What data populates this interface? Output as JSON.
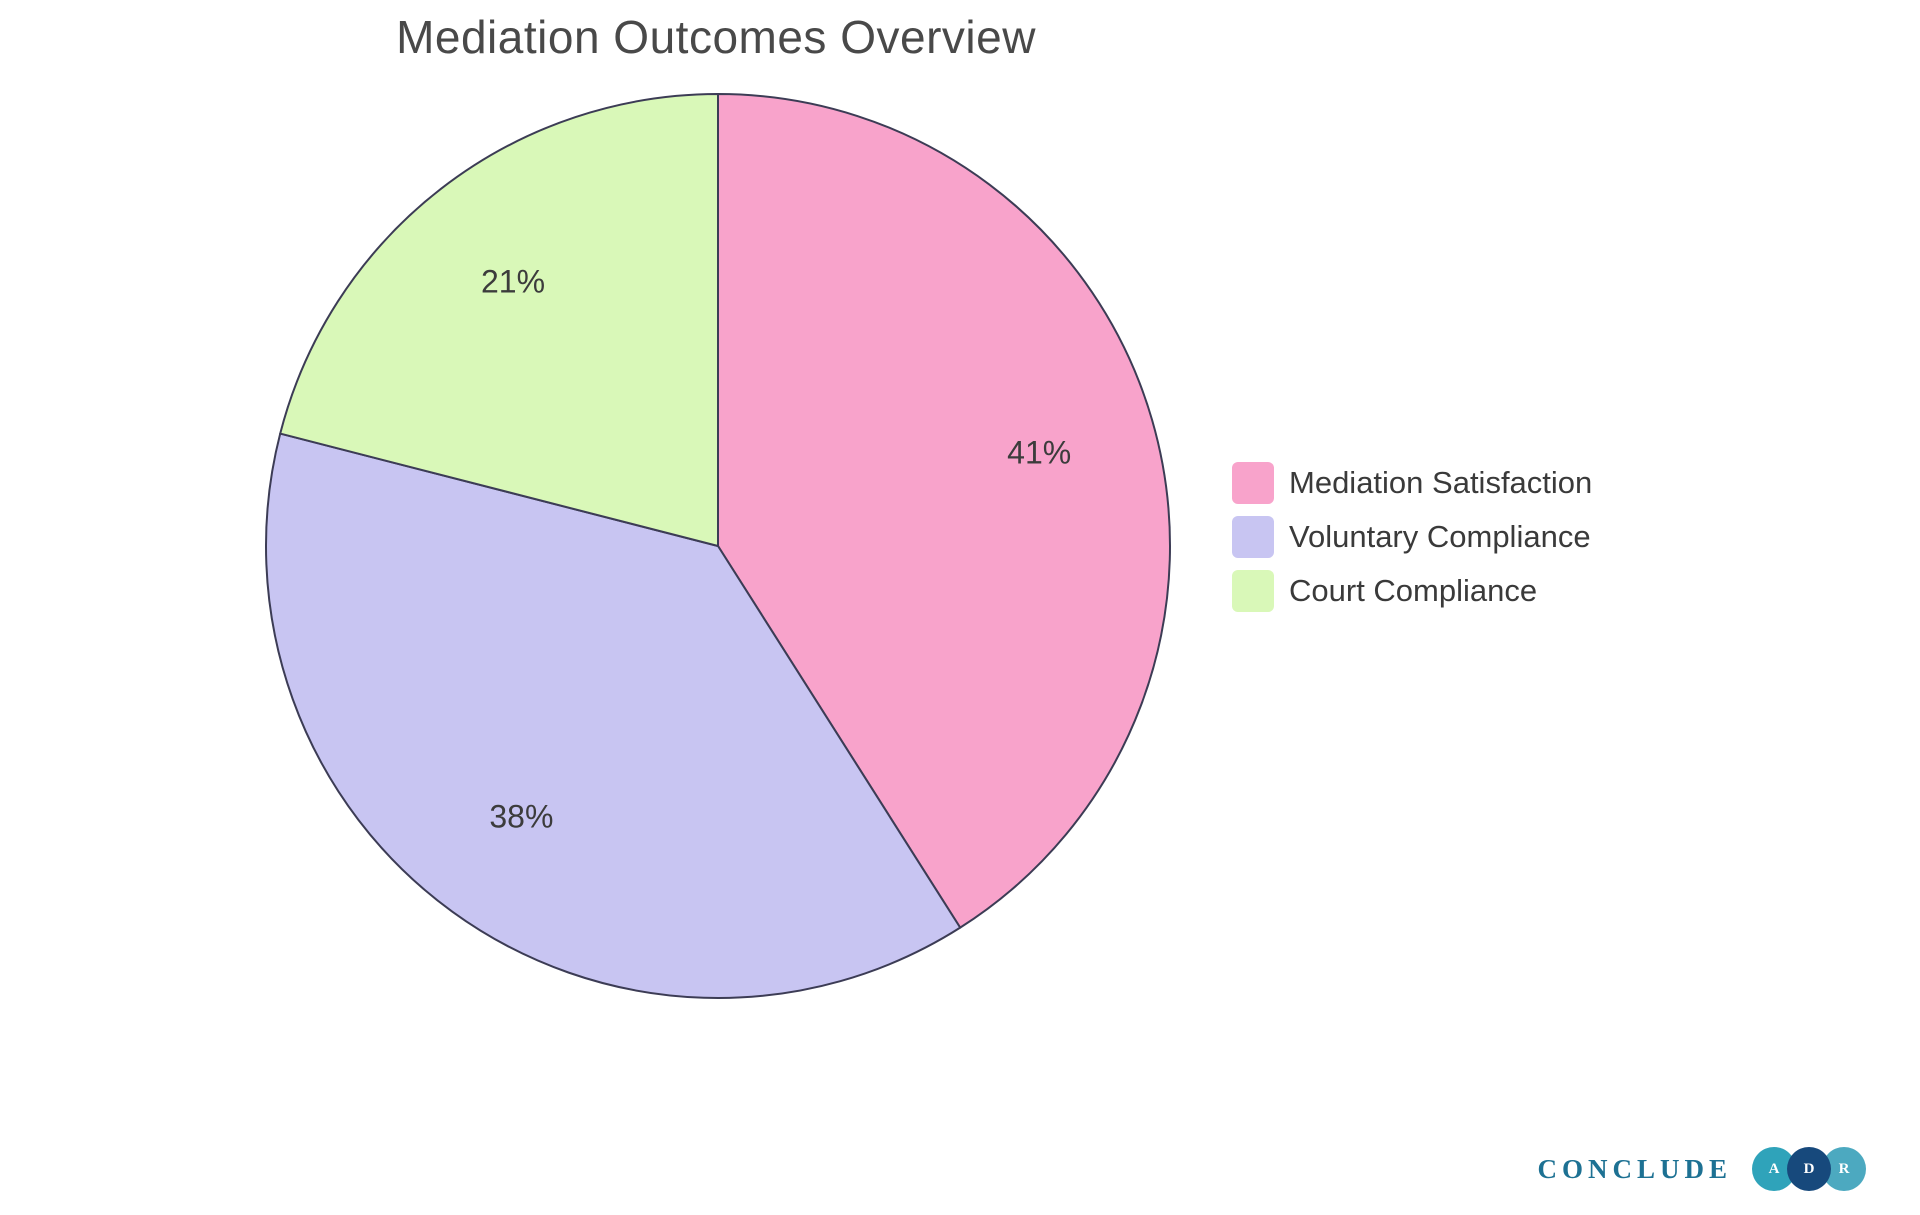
{
  "chart_data": {
    "type": "pie",
    "title": "Mediation Outcomes Overview",
    "categories": [
      "Mediation Satisfaction",
      "Voluntary Compliance",
      "Court Compliance"
    ],
    "values": [
      41,
      38,
      21
    ],
    "labels": [
      "41%",
      "38%",
      "21%"
    ],
    "colors": [
      "#F8A3CB",
      "#C8C5F2",
      "#D9F8B8"
    ],
    "stroke_color": "#3C3C55",
    "start_angle_deg": -90,
    "direction": "clockwise",
    "legend_position": "right"
  },
  "branding": {
    "wordmark": "CONCLUDE",
    "badges": [
      {
        "letter": "A",
        "color": "#2FA3BA"
      },
      {
        "letter": "D",
        "color": "#17497C"
      },
      {
        "letter": "R",
        "color": "#4CA9C0"
      }
    ]
  }
}
